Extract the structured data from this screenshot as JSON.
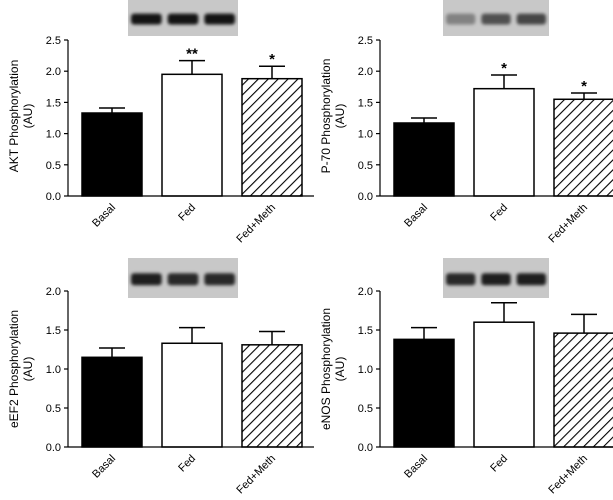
{
  "chart_data": [
    {
      "type": "bar",
      "panel": "top-left",
      "ylabel_line1": "AKT Phosphorylation",
      "ylabel_line2": "(AU)",
      "categories": [
        "Basal",
        "Fed",
        "Fed+Meth"
      ],
      "values": [
        1.33,
        1.95,
        1.88
      ],
      "errors": [
        0.08,
        0.22,
        0.2
      ],
      "significance": [
        "",
        "**",
        "*"
      ],
      "ylim": [
        0,
        2.5
      ],
      "yticks": [
        "0.0",
        "0.5",
        "1.0",
        "1.5",
        "2.0",
        "2.5"
      ],
      "fills": [
        "black",
        "white",
        "hatched"
      ],
      "blot": {
        "bands": 3,
        "intensity": [
          0.9,
          0.9,
          0.9
        ]
      }
    },
    {
      "type": "bar",
      "panel": "top-right",
      "ylabel_line1": "P-70 Phosphorylation",
      "ylabel_line2": "(AU)",
      "categories": [
        "Basal",
        "Fed",
        "Fed+Meth"
      ],
      "values": [
        1.17,
        1.72,
        1.55
      ],
      "errors": [
        0.08,
        0.22,
        0.1
      ],
      "significance": [
        "",
        "*",
        "*"
      ],
      "ylim": [
        0,
        2.5
      ],
      "yticks": [
        "0.0",
        "0.5",
        "1.0",
        "1.5",
        "2.0",
        "2.5"
      ],
      "fills": [
        "black",
        "white",
        "hatched"
      ],
      "blot": {
        "bands": 3,
        "intensity": [
          0.35,
          0.6,
          0.65
        ]
      }
    },
    {
      "type": "bar",
      "panel": "bottom-left",
      "ylabel_line1": "eEF2 Phosphorylation",
      "ylabel_line2": "(AU)",
      "categories": [
        "Basal",
        "Fed",
        "Fed+Meth"
      ],
      "values": [
        1.15,
        1.33,
        1.31
      ],
      "errors": [
        0.12,
        0.2,
        0.17
      ],
      "significance": [
        "",
        "",
        ""
      ],
      "ylim": [
        0,
        2.0
      ],
      "yticks": [
        "0.0",
        "0.5",
        "1.0",
        "1.5",
        "2.0"
      ],
      "fills": [
        "black",
        "white",
        "hatched"
      ],
      "blot": {
        "bands": 3,
        "intensity": [
          0.85,
          0.8,
          0.8
        ]
      }
    },
    {
      "type": "bar",
      "panel": "bottom-right",
      "ylabel_line1": "eNOS Phosphorylation",
      "ylabel_line2": "(AU)",
      "categories": [
        "Basal",
        "Fed",
        "Fed+Meth"
      ],
      "values": [
        1.38,
        1.6,
        1.46
      ],
      "errors": [
        0.15,
        0.25,
        0.24
      ],
      "significance": [
        "",
        "",
        ""
      ],
      "ylim": [
        0,
        2.0
      ],
      "yticks": [
        "0.0",
        "0.5",
        "1.0",
        "1.5",
        "2.0"
      ],
      "fills": [
        "black",
        "white",
        "hatched"
      ],
      "blot": {
        "bands": 3,
        "intensity": [
          0.8,
          0.85,
          0.85
        ]
      }
    }
  ]
}
